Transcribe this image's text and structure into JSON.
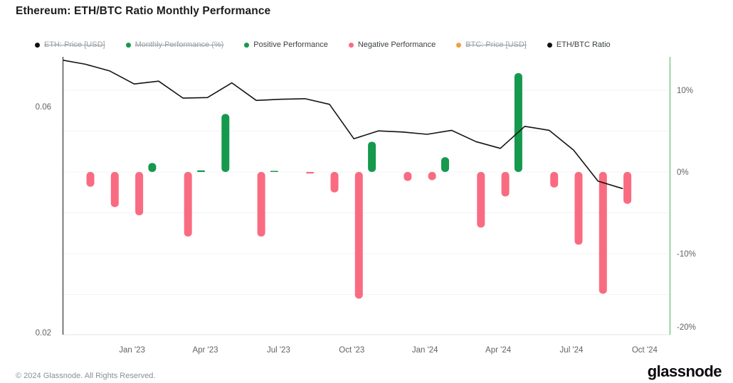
{
  "title": "Ethereum: ETH/BTC Ratio Monthly Performance",
  "legend": {
    "items": [
      {
        "label": "ETH: Price [USD]",
        "color": "#111111",
        "struck": true
      },
      {
        "label": "Monthly Performance (%)",
        "color": "#15994d",
        "struck": true
      },
      {
        "label": "Positive Performance",
        "color": "#15994d",
        "struck": false
      },
      {
        "label": "Negative Performance",
        "color": "#f96b81",
        "struck": false
      },
      {
        "label": "BTC: Price [USD]",
        "color": "#f0a13e",
        "struck": true
      },
      {
        "label": "ETH/BTC Ratio",
        "color": "#111111",
        "struck": false
      }
    ]
  },
  "chart_data": {
    "type": "mixed-bar-line",
    "title": "Ethereum: ETH/BTC Ratio Monthly Performance",
    "categories": [
      "Nov '22",
      "Dec '22",
      "Jan '23",
      "Feb '23",
      "Mar '23",
      "Apr '23",
      "May '23",
      "Jun '23",
      "Jul '23",
      "Aug '23",
      "Sep '23",
      "Oct '23",
      "Nov '23",
      "Dec '23",
      "Jan '24",
      "Feb '24",
      "Mar '24",
      "Apr '24",
      "May '24",
      "Jun '24",
      "Jul '24",
      "Aug '24",
      "Sep '24"
    ],
    "series": [
      {
        "name": "Monthly Performance (%)",
        "type": "bar",
        "axis": "right",
        "values": [
          -1.8,
          -4.3,
          -5.3,
          1.1,
          -7.9,
          0.2,
          7.1,
          -7.9,
          0.1,
          -0.2,
          -2.5,
          -15.5,
          3.7,
          -1.1,
          -1.0,
          1.8,
          -6.8,
          -3.0,
          12.1,
          -1.9,
          -8.9,
          -14.9,
          -3.9
        ]
      },
      {
        "name": "ETH/BTC Ratio",
        "type": "line",
        "axis": "left",
        "start_value": 0.0682,
        "values": [
          0.0675,
          0.0663,
          0.064,
          0.0645,
          0.0615,
          0.0616,
          0.0642,
          0.0611,
          0.0613,
          0.0614,
          0.0604,
          0.0543,
          0.0557,
          0.0555,
          0.0551,
          0.0558,
          0.0538,
          0.0526,
          0.0565,
          0.0558,
          0.0523,
          0.0468,
          0.0455
        ]
      }
    ],
    "y_left": {
      "range": [
        0.02,
        0.0688
      ],
      "labels": [
        {
          "text": "0.06",
          "value": 0.06
        },
        {
          "text": "0.02",
          "value": 0.02
        }
      ]
    },
    "y_right": {
      "range": [
        -20.5,
        14.5
      ],
      "labels": [
        {
          "text": "10%",
          "value": 10
        },
        {
          "text": "0%",
          "value": 0
        },
        {
          "text": "-10%",
          "value": -10
        },
        {
          "text": "-20%",
          "value": -20
        }
      ]
    },
    "x_ticks": [
      {
        "label": "Jan '23",
        "i": 2
      },
      {
        "label": "Apr '23",
        "i": 5
      },
      {
        "label": "Jul '23",
        "i": 8
      },
      {
        "label": "Oct '23",
        "i": 11
      },
      {
        "label": "Jan '24",
        "i": 14
      },
      {
        "label": "Apr '24",
        "i": 17
      },
      {
        "label": "Jul '24",
        "i": 20
      },
      {
        "label": "Oct '24",
        "i": 23
      }
    ],
    "grid": "horizontal-every-5pct",
    "legend_position": "top",
    "colors": {
      "positive": "#15994d",
      "negative": "#f96b81",
      "line": "#131313",
      "right_axis": "#85cb93",
      "left_axis": "#2f3337",
      "gridline": "#f3f3f3",
      "baseline": "#e4e4e4"
    }
  },
  "footer": {
    "copyright": "© 2024 Glassnode. All Rights Reserved.",
    "logo_text": "glassnode"
  }
}
